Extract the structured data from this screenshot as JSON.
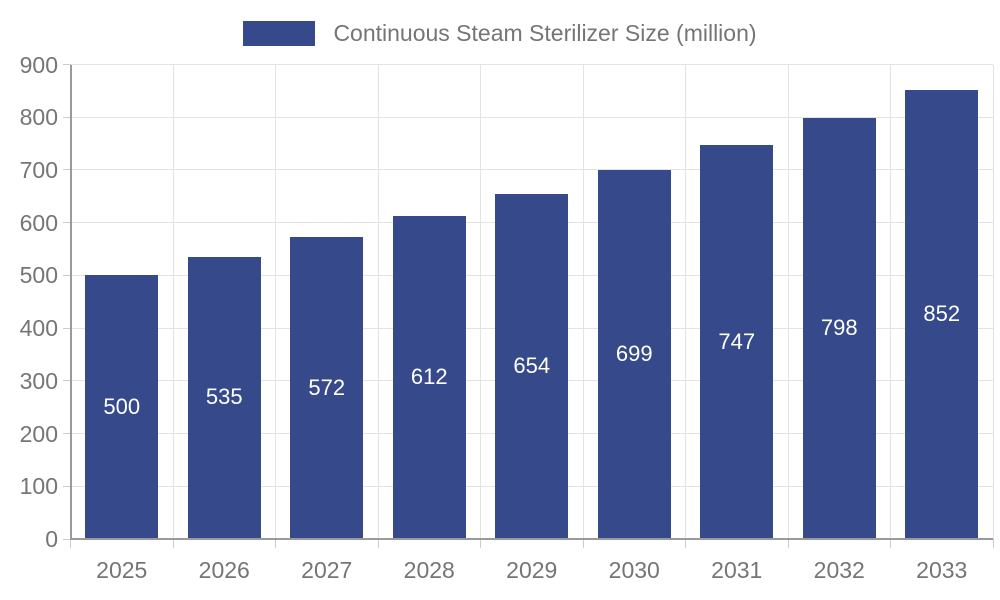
{
  "chart_data": {
    "type": "bar",
    "title": "",
    "legend": {
      "label": "Continuous Steam Sterilizer Size (million)",
      "position": "top-center"
    },
    "categories": [
      "2025",
      "2026",
      "2027",
      "2028",
      "2029",
      "2030",
      "2031",
      "2032",
      "2033"
    ],
    "series": [
      {
        "name": "Continuous Steam Sterilizer Size (million)",
        "values": [
          500,
          535,
          572,
          612,
          654,
          699,
          747,
          798,
          852
        ]
      }
    ],
    "xlabel": "",
    "ylabel": "",
    "ylim": [
      0,
      900
    ],
    "yticks": [
      0,
      100,
      200,
      300,
      400,
      500,
      600,
      700,
      800,
      900
    ],
    "grid": true,
    "value_labels_inside_bars": true,
    "colors": {
      "bar": "#36498b",
      "grid_line": "#e3e3e3",
      "axis_line": "#9a9a9a",
      "tick": "#cccccc",
      "axis_text": "#757575",
      "value_label": "#ffffff",
      "background": "#ffffff"
    }
  }
}
